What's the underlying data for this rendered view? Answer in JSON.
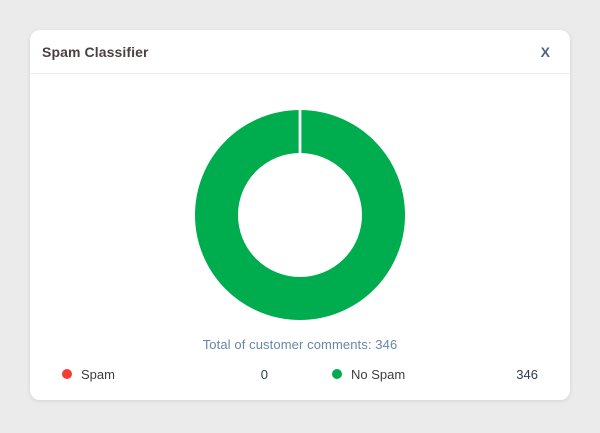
{
  "card": {
    "title": "Spam Classifier",
    "close_label": "X"
  },
  "chart_data": {
    "type": "pie",
    "variant": "donut",
    "title": "Spam Classifier",
    "categories": [
      "Spam",
      "No Spam"
    ],
    "values": [
      0,
      346
    ],
    "colors": [
      "#f43d2f",
      "#00ad4e"
    ],
    "total": 346,
    "legend_position": "bottom",
    "summary_text": "Total of customer comments: 346"
  },
  "summary": {
    "text": "Total of customer comments: 346"
  },
  "legend": [
    {
      "label": "Spam",
      "value": "0",
      "color": "#f43d2f"
    },
    {
      "label": "No Spam",
      "value": "346",
      "color": "#00ad4e"
    }
  ],
  "colors": {
    "page_background": "#ebebeb",
    "card_background": "#ffffff",
    "title_text": "#4a4240",
    "close_x": "#4b6584",
    "summary_text": "#6787a8",
    "legend_label": "#3d3d3d",
    "legend_value": "#2f3a4d",
    "divider": "#ecedf2",
    "donut_gap": "#ffffff"
  }
}
